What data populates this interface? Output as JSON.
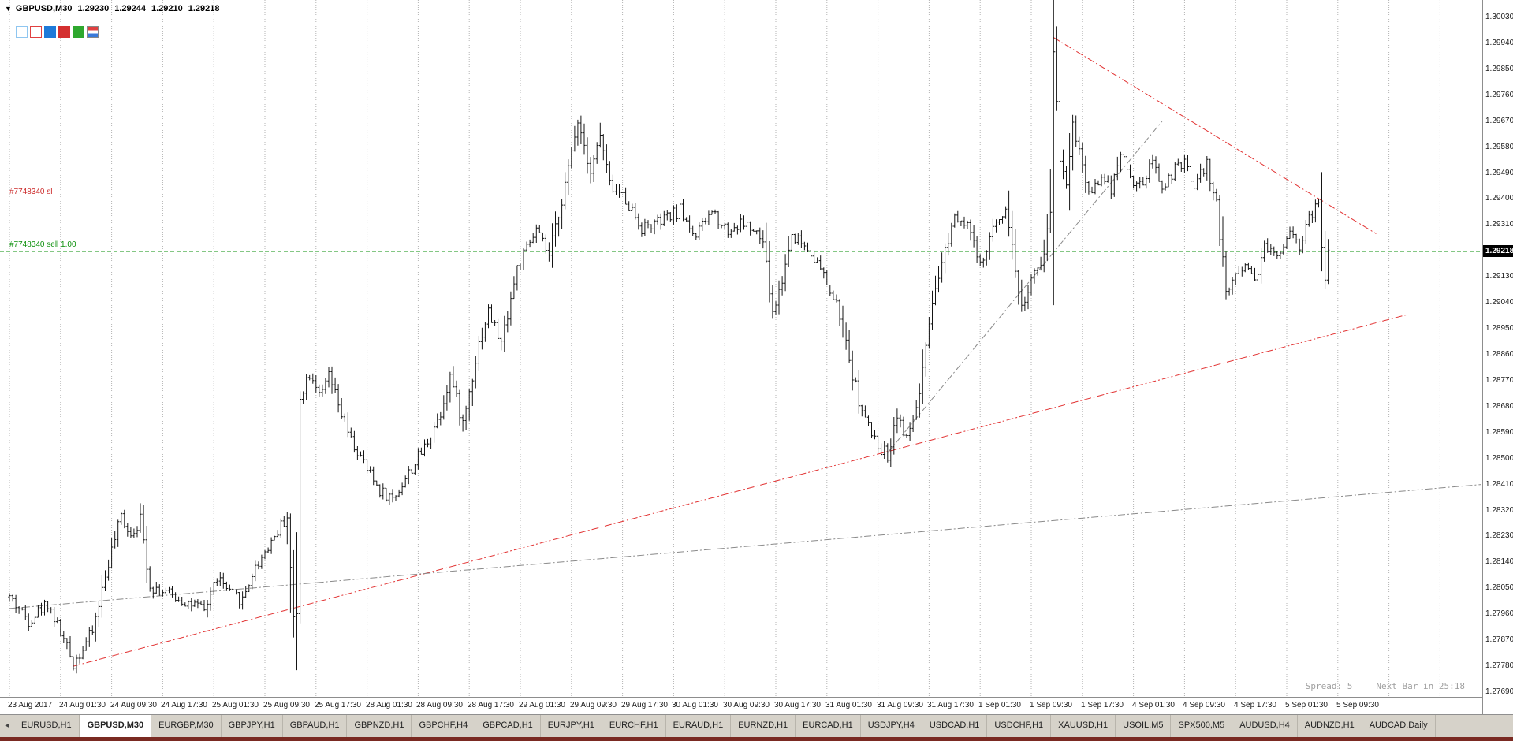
{
  "chart": {
    "title": {
      "dropdown_icon": "▼",
      "symbol": "GBPUSD,M30",
      "open": "1.29230",
      "high": "1.29244",
      "low": "1.29210",
      "close": "1.29218"
    },
    "swatches": [
      {
        "name": "swatch-white-blue",
        "style": "outline",
        "color": "#8fc6f0",
        "fill": "#ffffff"
      },
      {
        "name": "swatch-white-red",
        "style": "outline",
        "color": "#e04040",
        "fill": "#ffffff"
      },
      {
        "name": "swatch-blue",
        "style": "fill",
        "color": "#1e7ad9",
        "fill": "#1e7ad9"
      },
      {
        "name": "swatch-red",
        "style": "fill",
        "color": "#d43030",
        "fill": "#d43030"
      },
      {
        "name": "swatch-green",
        "style": "fill",
        "color": "#2ea82e",
        "fill": "#2ea82e"
      },
      {
        "name": "swatch-striped",
        "style": "stripes",
        "colors": [
          "#e04040",
          "#ffffff",
          "#3a7ad9"
        ]
      }
    ],
    "status": {
      "spread": "Spread: 5",
      "next_bar": "Next Bar in 25:18"
    },
    "price_badge": "1.29218"
  },
  "chart_data": {
    "type": "ohlc-bars",
    "symbol": "GBPUSD",
    "timeframe": "M30",
    "current_price": 1.29218,
    "price_axis": {
      "min": 1.2769,
      "max": 1.3003,
      "step": 0.0009,
      "labels": [
        "1.30030",
        "1.29940",
        "1.29850",
        "1.29760",
        "1.29670",
        "1.29580",
        "1.29490",
        "1.29400",
        "1.29310",
        "1.29130",
        "1.29040",
        "1.28950",
        "1.28860",
        "1.28770",
        "1.28680",
        "1.28590",
        "1.28500",
        "1.28410",
        "1.28320",
        "1.28230",
        "1.28140",
        "1.28050",
        "1.27960",
        "1.27870",
        "1.27780",
        "1.27690"
      ]
    },
    "time_labels": [
      "23 Aug 2017",
      "24 Aug 01:30",
      "24 Aug 09:30",
      "24 Aug 17:30",
      "25 Aug 01:30",
      "25 Aug 09:30",
      "25 Aug 17:30",
      "28 Aug 01:30",
      "28 Aug 09:30",
      "28 Aug 17:30",
      "29 Aug 01:30",
      "29 Aug 09:30",
      "29 Aug 17:30",
      "30 Aug 01:30",
      "30 Aug 09:30",
      "30 Aug 17:30",
      "31 Aug 01:30",
      "31 Aug 09:30",
      "31 Aug 17:30",
      "1 Sep 01:30",
      "1 Sep 09:30",
      "1 Sep 17:30",
      "4 Sep 01:30",
      "4 Sep 09:30",
      "4 Sep 17:30",
      "5 Sep 01:30",
      "5 Sep 09:30"
    ],
    "order_lines": [
      {
        "name": "sl-line-label",
        "label": "#7748340 sl",
        "price": 1.294,
        "color": "#cc2a2a",
        "dash": "8 2 2 2 2 2"
      },
      {
        "name": "sell-line-label",
        "label": "#7748340 sell 1.00",
        "price": 1.29218,
        "color": "#0a8f0a",
        "dash": "5 3"
      }
    ],
    "trendlines": [
      {
        "name": "ascending-red-trendline",
        "from": [
          20,
          1.2778
        ],
        "to": [
          438,
          1.29
        ],
        "color": "#e23434"
      },
      {
        "name": "descending-red-trendline",
        "from": [
          327,
          1.2996
        ],
        "to": [
          428,
          1.2928
        ],
        "color": "#e23434"
      },
      {
        "name": "ascending-gray-trendline-long",
        "from": [
          0,
          1.2798
        ],
        "to": [
          461,
          1.2841
        ],
        "color": "#8a8a8a"
      },
      {
        "name": "ascending-gray-trendline-steep",
        "from": [
          275,
          1.2852
        ],
        "to": [
          361,
          1.2967
        ],
        "color": "#8a8a8a"
      }
    ],
    "bars": {
      "count": 414,
      "seed": 42,
      "waypoints": [
        [
          0,
          1.2802
        ],
        [
          6,
          1.2794
        ],
        [
          12,
          1.28
        ],
        [
          20,
          1.2779
        ],
        [
          26,
          1.279
        ],
        [
          31,
          1.2814
        ],
        [
          35,
          1.283
        ],
        [
          38,
          1.2824
        ],
        [
          41,
          1.2829
        ],
        [
          44,
          1.2806
        ],
        [
          50,
          1.2803
        ],
        [
          56,
          1.28
        ],
        [
          61,
          1.2797
        ],
        [
          65,
          1.2809
        ],
        [
          69,
          1.2803
        ],
        [
          73,
          1.2801
        ],
        [
          76,
          1.281
        ],
        [
          80,
          1.2818
        ],
        [
          84,
          1.2825
        ],
        [
          87,
          1.283
        ],
        [
          89,
          1.2794
        ],
        [
          90,
          1.2796
        ],
        [
          91,
          1.2872
        ],
        [
          94,
          1.288
        ],
        [
          98,
          1.2872
        ],
        [
          100,
          1.2879
        ],
        [
          103,
          1.2868
        ],
        [
          107,
          1.2856
        ],
        [
          112,
          1.2846
        ],
        [
          116,
          1.2839
        ],
        [
          120,
          1.2836
        ],
        [
          124,
          1.2843
        ],
        [
          130,
          1.2854
        ],
        [
          135,
          1.2866
        ],
        [
          138,
          1.2879
        ],
        [
          142,
          1.2862
        ],
        [
          147,
          1.289
        ],
        [
          150,
          1.2901
        ],
        [
          154,
          1.289
        ],
        [
          159,
          1.2916
        ],
        [
          165,
          1.2929
        ],
        [
          169,
          1.292
        ],
        [
          175,
          1.295
        ],
        [
          178,
          1.2968
        ],
        [
          182,
          1.295
        ],
        [
          185,
          1.2962
        ],
        [
          188,
          1.2945
        ],
        [
          193,
          1.294
        ],
        [
          198,
          1.293
        ],
        [
          204,
          1.2932
        ],
        [
          210,
          1.2936
        ],
        [
          215,
          1.2927
        ],
        [
          220,
          1.2936
        ],
        [
          225,
          1.2929
        ],
        [
          230,
          1.2932
        ],
        [
          236,
          1.2925
        ],
        [
          239,
          1.29
        ],
        [
          242,
          1.2912
        ],
        [
          245,
          1.2928
        ],
        [
          251,
          1.2922
        ],
        [
          255,
          1.2913
        ],
        [
          260,
          1.29
        ],
        [
          263,
          1.2884
        ],
        [
          267,
          1.2866
        ],
        [
          271,
          1.2856
        ],
        [
          275,
          1.2851
        ],
        [
          278,
          1.2866
        ],
        [
          281,
          1.2856
        ],
        [
          285,
          1.2872
        ],
        [
          288,
          1.2896
        ],
        [
          292,
          1.2918
        ],
        [
          296,
          1.2935
        ],
        [
          300,
          1.2932
        ],
        [
          304,
          1.2916
        ],
        [
          309,
          1.2932
        ],
        [
          312,
          1.2938
        ],
        [
          315,
          1.2916
        ],
        [
          317,
          1.2902
        ],
        [
          320,
          1.2912
        ],
        [
          323,
          1.2916
        ],
        [
          326,
          1.2936
        ],
        [
          327,
          1.2992
        ],
        [
          329,
          1.2955
        ],
        [
          331,
          1.2946
        ],
        [
          333,
          1.2966
        ],
        [
          335,
          1.2957
        ],
        [
          338,
          1.2942
        ],
        [
          341,
          1.2947
        ],
        [
          345,
          1.2944
        ],
        [
          348,
          1.2957
        ],
        [
          351,
          1.2947
        ],
        [
          354,
          1.2944
        ],
        [
          358,
          1.2952
        ],
        [
          361,
          1.2944
        ],
        [
          365,
          1.295
        ],
        [
          368,
          1.2952
        ],
        [
          371,
          1.2945
        ],
        [
          375,
          1.2952
        ],
        [
          378,
          1.2938
        ],
        [
          381,
          1.2908
        ],
        [
          384,
          1.2914
        ],
        [
          387,
          1.2918
        ],
        [
          390,
          1.2912
        ],
        [
          393,
          1.2924
        ],
        [
          397,
          1.292
        ],
        [
          401,
          1.293
        ],
        [
          404,
          1.2924
        ],
        [
          407,
          1.2933
        ],
        [
          410,
          1.2938
        ],
        [
          412,
          1.2912
        ],
        [
          413,
          1.29218
        ]
      ]
    }
  },
  "tabs": {
    "scroll_left_icon": "◄",
    "items": [
      {
        "label": "EURUSD,H1",
        "active": false
      },
      {
        "label": "GBPUSD,M30",
        "active": true
      },
      {
        "label": "EURGBP,M30",
        "active": false
      },
      {
        "label": "GBPJPY,H1",
        "active": false
      },
      {
        "label": "GBPAUD,H1",
        "active": false
      },
      {
        "label": "GBPNZD,H1",
        "active": false
      },
      {
        "label": "GBPCHF,H4",
        "active": false
      },
      {
        "label": "GBPCAD,H1",
        "active": false
      },
      {
        "label": "EURJPY,H1",
        "active": false
      },
      {
        "label": "EURCHF,H1",
        "active": false
      },
      {
        "label": "EURAUD,H1",
        "active": false
      },
      {
        "label": "EURNZD,H1",
        "active": false
      },
      {
        "label": "EURCAD,H1",
        "active": false
      },
      {
        "label": "USDJPY,H4",
        "active": false
      },
      {
        "label": "USDCAD,H1",
        "active": false
      },
      {
        "label": "USDCHF,H1",
        "active": false
      },
      {
        "label": "XAUUSD,H1",
        "active": false
      },
      {
        "label": "USOIL,M5",
        "active": false
      },
      {
        "label": "SPX500,M5",
        "active": false
      },
      {
        "label": "AUDUSD,H4",
        "active": false
      },
      {
        "label": "AUDNZD,H1",
        "active": false
      },
      {
        "label": "AUDCAD,Daily",
        "active": false
      }
    ]
  }
}
